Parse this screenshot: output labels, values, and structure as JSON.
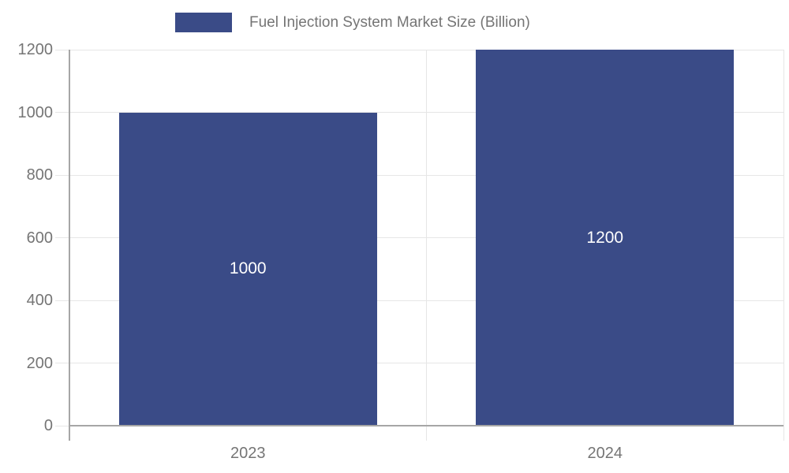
{
  "legend": {
    "label": "Fuel Injection System Market Size (Billion)"
  },
  "chart_data": {
    "type": "bar",
    "title": "Fuel Injection System Market Size (Billion)",
    "categories": [
      "2023",
      "2024"
    ],
    "values": [
      1000,
      1200
    ],
    "bar_labels": [
      "1000",
      "1200"
    ],
    "xlabel": "",
    "ylabel": "",
    "ylim": [
      0,
      1200
    ],
    "yticks": [
      0,
      200,
      400,
      600,
      800,
      1000,
      1200
    ],
    "ytick_labels": [
      "0",
      "200",
      "400",
      "600",
      "800",
      "1000",
      "1200"
    ],
    "grid": true,
    "legend_position": "top",
    "colors": {
      "bar": "#3A4B87",
      "bar_label": "#FFFFFF",
      "tick_label": "#757575",
      "legend_text": "#757575",
      "gridline": "#E6E6E6",
      "axis_line": "#A6A6A6",
      "background": "#FFFFFF"
    }
  }
}
